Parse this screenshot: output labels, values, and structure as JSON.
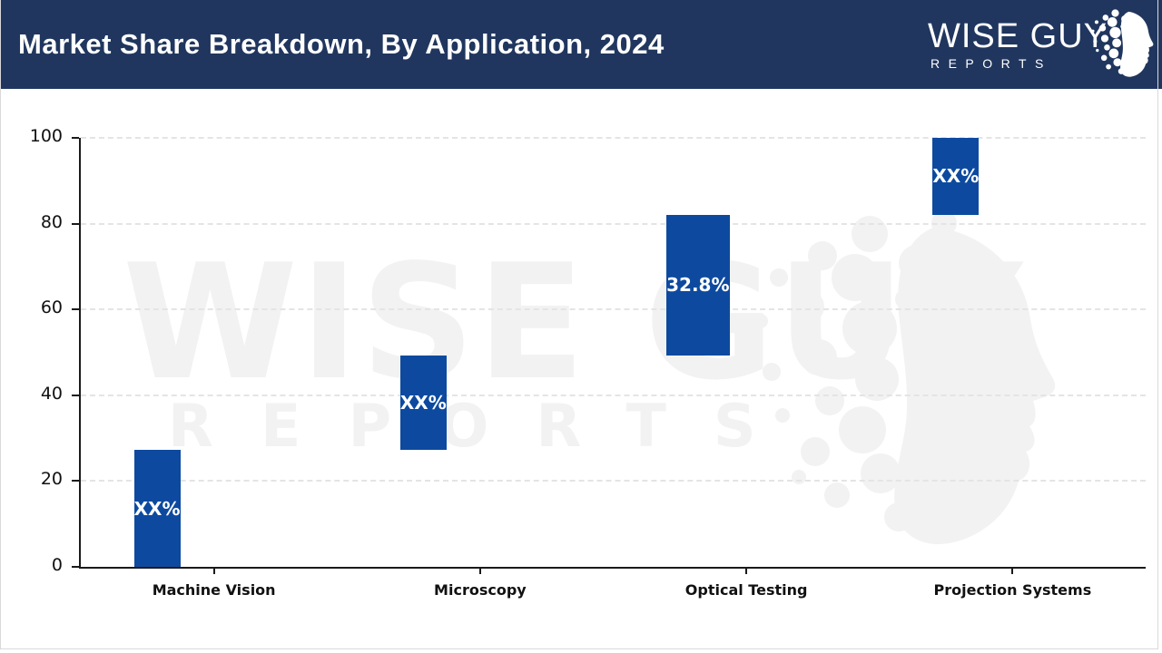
{
  "header": {
    "title": "Market Share Breakdown, By Application, 2024",
    "logo": {
      "name": "WISE GUY",
      "subtitle": "REPORTS"
    }
  },
  "watermark": {
    "line1": "WISE GUY",
    "line2": "REPORTS"
  },
  "chart_data": {
    "type": "bar",
    "subtype": "waterfall",
    "title": "Market Share Breakdown, By Application, 2024",
    "categories": [
      "Machine Vision",
      "Microscopy",
      "Optical Testing",
      "Projection Systems"
    ],
    "segments": [
      {
        "category": "Machine Vision",
        "start": 0,
        "end": 27.2,
        "value": 27.2,
        "label": "XX%"
      },
      {
        "category": "Microscopy",
        "start": 27.2,
        "end": 49.3,
        "value": 22.1,
        "label": "XX%"
      },
      {
        "category": "Optical Testing",
        "start": 49.3,
        "end": 82.1,
        "value": 32.8,
        "label": "32.8%"
      },
      {
        "category": "Projection Systems",
        "start": 82.1,
        "end": 100,
        "value": 17.9,
        "label": "XX%"
      }
    ],
    "ylim": [
      0,
      100
    ],
    "yticks": [
      0,
      20,
      40,
      60,
      80,
      100
    ],
    "grid": "horizontal-dashed",
    "legend": "none",
    "bar_color": "#0d4a9f",
    "bar_label_color": "#ffffff",
    "axis_color": "#1a1a1a",
    "header_bg_color": "#20365e",
    "watermark_color": "#f2f2f2"
  }
}
